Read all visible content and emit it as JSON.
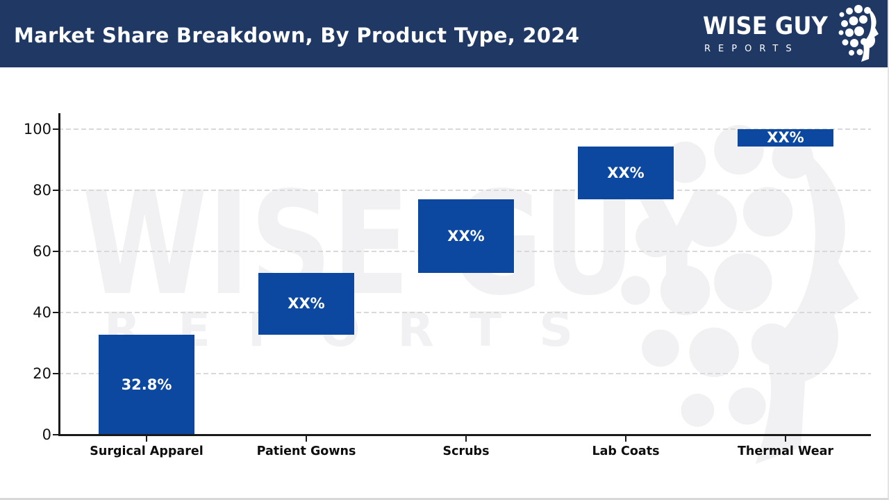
{
  "header": {
    "title": "Market Share Breakdown, By Product Type, 2024",
    "logo": {
      "wordmark": "WISE GUY",
      "subtext": "REPORTS",
      "head_icon": "dotted-head-profile-icon"
    }
  },
  "watermark": {
    "wordmark": "WISE GUY",
    "subtext": "REPORTS",
    "head_icon": "dotted-head-profile-icon"
  },
  "chart_data": {
    "type": "bar",
    "variant": "floating-waterfall",
    "title": "Market Share Breakdown, By Product Type, 2024",
    "categories": [
      "Surgical Apparel",
      "Patient Gowns",
      "Scrubs",
      "Lab Coats",
      "Thermal Wear"
    ],
    "segments": [
      {
        "category": "Surgical Apparel",
        "start": 0,
        "end": 32.8,
        "label": "32.8%"
      },
      {
        "category": "Patient Gowns",
        "start": 32.8,
        "end": 52.9,
        "label": "XX%"
      },
      {
        "category": "Scrubs",
        "start": 52.9,
        "end": 77.0,
        "label": "XX%"
      },
      {
        "category": "Lab Coats",
        "start": 77.0,
        "end": 94.4,
        "label": "XX%"
      },
      {
        "category": "Thermal Wear",
        "start": 94.4,
        "end": 100,
        "label": "XX%"
      }
    ],
    "xlabel": "",
    "ylabel": "",
    "yticks": [
      0,
      20,
      40,
      60,
      80,
      100
    ],
    "ylim": [
      0,
      105
    ],
    "grid": "horizontal-dashed",
    "legend_position": "none"
  },
  "colors": {
    "header_bg": "#1f3864",
    "bar": "#0d48a0",
    "bar_label": "#ffffff",
    "grid": "#d9d9d9",
    "axis": "#1a1a1a",
    "tick_text": "#111111",
    "watermark": "#f1f1f3",
    "page_bg": "#ffffff"
  }
}
